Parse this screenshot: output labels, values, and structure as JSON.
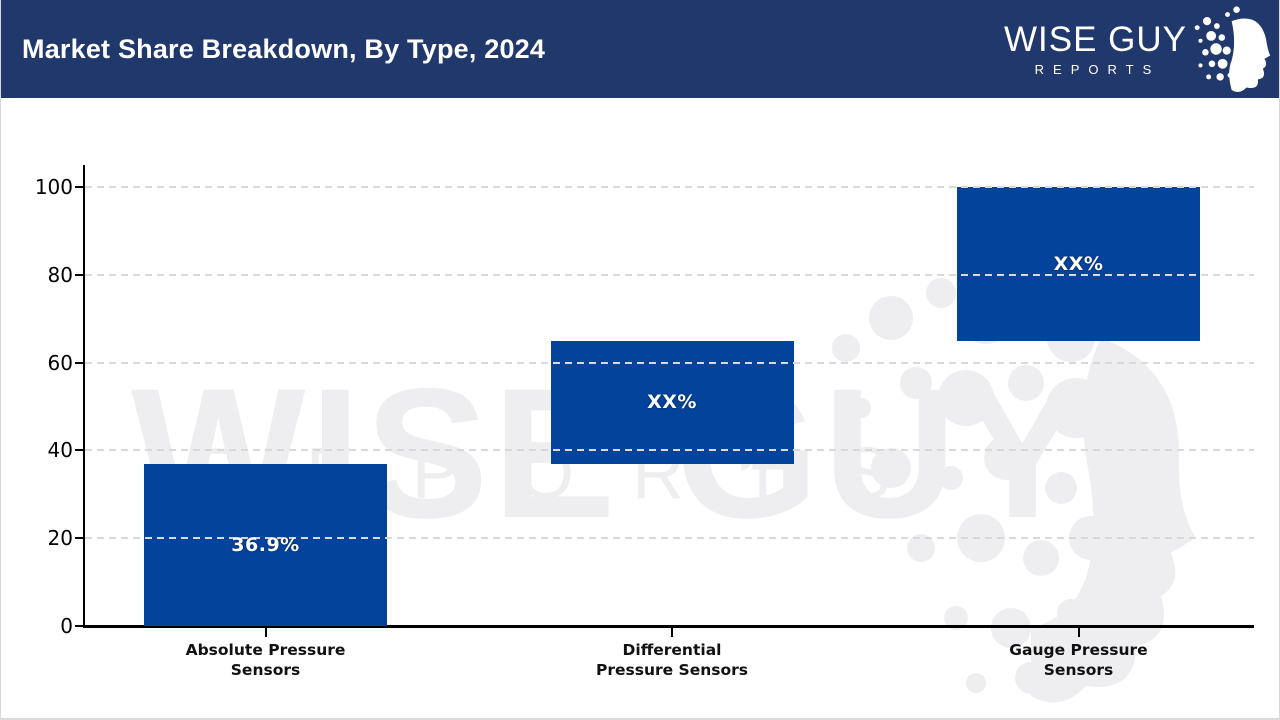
{
  "header": {
    "title": "Market Share Breakdown, By Type, 2024",
    "logo": {
      "brand_top": "WISE GUY",
      "brand_bottom": "REPORTS"
    }
  },
  "watermark": {
    "line1": "WISE GUY",
    "line2": "REPORTS"
  },
  "chart_data": {
    "type": "bar",
    "variant": "waterfall",
    "title": "Market Share Breakdown, By Type, 2024",
    "categories": [
      "Absolute Pressure Sensors",
      "Differential Pressure Sensors",
      "Gauge Pressure Sensors"
    ],
    "category_lines": [
      [
        "Absolute Pressure",
        "Sensors"
      ],
      [
        "Differential",
        "Pressure Sensors"
      ],
      [
        "Gauge Pressure",
        "Sensors"
      ]
    ],
    "bars": [
      {
        "start": 0,
        "end": 36.9,
        "label": "36.9%"
      },
      {
        "start": 36.9,
        "end": 65,
        "label": "XX%"
      },
      {
        "start": 65,
        "end": 100,
        "label": "XX%"
      }
    ],
    "yticks": [
      0,
      20,
      40,
      60,
      80,
      100
    ],
    "ylim": [
      0,
      105
    ],
    "xlabel": "",
    "ylabel": "",
    "legend": "none",
    "grid": "horizontal-dashed",
    "colors": {
      "bar": "#04439c",
      "header_bg": "#20386b",
      "grid": "#d9d9d9",
      "axis": "#000000",
      "bar_label_text": "#ffffff",
      "watermark": "#eeeef1"
    }
  }
}
